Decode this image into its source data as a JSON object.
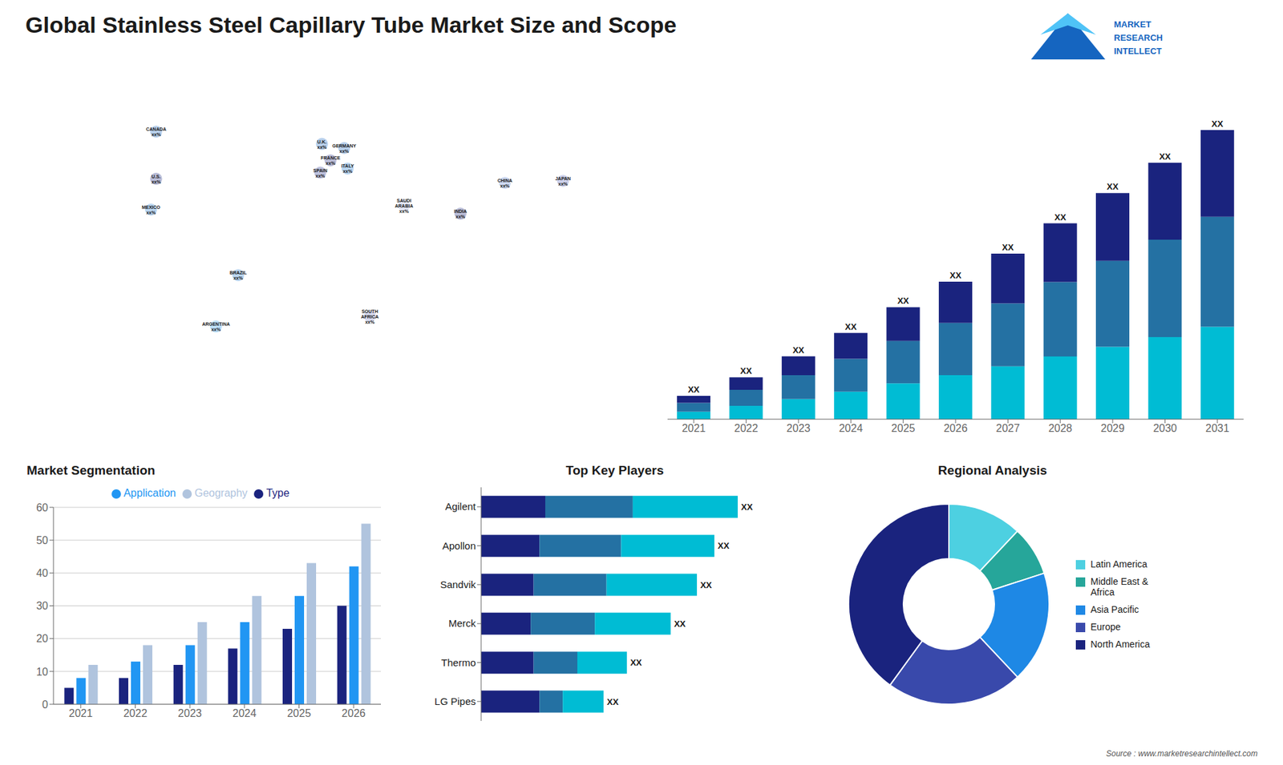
{
  "title": "Global Stainless Steel Capillary Tube Market Size and Scope",
  "annotations": [
    "MARKET",
    "RESEARCH",
    "INTELLECT",
    "Source : www.marketresearchintellect.com"
  ],
  "chart_data": [
    {
      "type": "scatter",
      "x": [
        -100,
        -100,
        -103,
        -52,
        -65,
        -3,
        2,
        -4,
        10,
        12,
        45,
        25,
        104,
        78,
        138
      ],
      "values": [
        60,
        37,
        22,
        -10,
        -35,
        54,
        46,
        40,
        52,
        42,
        24,
        -30,
        35,
        20,
        36
      ],
      "annotations": [
        "CANADA\nxx%",
        "U.S.\nxx%",
        "MEXICO\nxx%",
        "BRAZIL\nxx%",
        "ARGENTINA\nxx%",
        "U.K.\nxx%",
        "FRANCE\nxx%",
        "SPAIN\nxx%",
        "GERMANY\nxx%",
        "ITALY\nxx%",
        "SAUDI\nARABIA\nxx%",
        "SOUTH\nAFRICA\nxx%",
        "CHINA\nxx%",
        "INDIA\nxx%",
        "JAPAN\nxx%"
      ],
      "colors": [
        "#1565c0",
        "#1a237e",
        "#1976d2",
        "#1976d2",
        "#2196f3",
        "#1565c0",
        "#1a237e",
        "#283593",
        "#1565c0",
        "#1976d2",
        "#9fa8da",
        "#7986cb",
        "#5c85d6",
        "#1a237e",
        "#5c6bc0"
      ],
      "xlim": [
        -180,
        180
      ],
      "ylim": [
        -90,
        90
      ],
      "tick_labels": false,
      "grid": false
    },
    {
      "type": "bar",
      "stacked": true,
      "categories": [
        "2021",
        "2022",
        "2023",
        "2024",
        "2025",
        "2026",
        "2027",
        "2028",
        "2029",
        "2030",
        "2031"
      ],
      "series": [
        {
          "color": "#00bcd4",
          "values": [
            0.32,
            0.576,
            0.864,
            1.184,
            1.536,
            1.888,
            2.272,
            2.688,
            3.104,
            3.52,
            3.968
          ]
        },
        {
          "color": "#2471a3",
          "values": [
            0.38,
            0.684,
            1.026,
            1.406,
            1.824,
            2.242,
            2.698,
            3.192,
            3.686,
            4.18,
            4.712
          ]
        },
        {
          "color": "#1a237e",
          "values": [
            0.3,
            0.54,
            0.81,
            1.11,
            1.44,
            1.77,
            2.13,
            2.52,
            2.91,
            3.3,
            3.72
          ]
        }
      ],
      "annotations": [
        "XX",
        "XX",
        "XX",
        "XX",
        "XX",
        "XX",
        "XX",
        "XX",
        "XX",
        "XX",
        "XX"
      ],
      "ylim": [
        0,
        14.4
      ],
      "tick_labels": "x",
      "grid": false
    },
    {
      "type": "bar",
      "title": "Market Segmentation",
      "categories": [
        "2021",
        "2022",
        "2023",
        "2024",
        "2025",
        "2026"
      ],
      "series": [
        {
          "name": "Type",
          "color": "#1a237e",
          "values": [
            5,
            8,
            12,
            17,
            23,
            30
          ]
        },
        {
          "name": "Application",
          "color": "#2196f3",
          "values": [
            8,
            13,
            18,
            25,
            33,
            42
          ]
        },
        {
          "name": "Geography",
          "color": "#b0c4de",
          "values": [
            12,
            18,
            25,
            33,
            43,
            55
          ]
        }
      ],
      "ylim": [
        0,
        60
      ],
      "yticks": [
        0,
        10,
        20,
        30,
        40,
        50,
        60
      ],
      "grid": true,
      "legend": "top"
    },
    {
      "type": "bar",
      "title": "Top Key Players",
      "orientation": "horizontal",
      "stacked": true,
      "categories": [
        "Agilent",
        "Apollon",
        "Sandvik",
        "Merck",
        "Thermo",
        "LG Pipes"
      ],
      "series": [
        {
          "color": "#1a237e",
          "values": [
            0.22,
            0.2,
            0.18,
            0.17,
            0.18,
            0.2
          ]
        },
        {
          "color": "#2471a3",
          "values": [
            0.3,
            0.28,
            0.25,
            0.22,
            0.15,
            0.08
          ]
        },
        {
          "color": "#00bcd4",
          "values": [
            0.36,
            0.32,
            0.31,
            0.26,
            0.17,
            0.14
          ]
        }
      ],
      "annotations": [
        "XX",
        "XX",
        "XX",
        "XX",
        "XX",
        "XX"
      ],
      "xlim": [
        0,
        1.1
      ],
      "tick_labels": "y",
      "grid": false
    },
    {
      "type": "pie",
      "title": "Regional Analysis",
      "categories": [
        "Latin America",
        "Middle East &\nAfrica",
        "Asia Pacific",
        "Europe",
        "North America"
      ],
      "values": [
        12,
        8,
        18,
        22,
        40
      ],
      "colors": [
        "#4dd0e1",
        "#26a69a",
        "#1e88e5",
        "#3949ab",
        "#1a237e"
      ],
      "legend": "right"
    }
  ]
}
